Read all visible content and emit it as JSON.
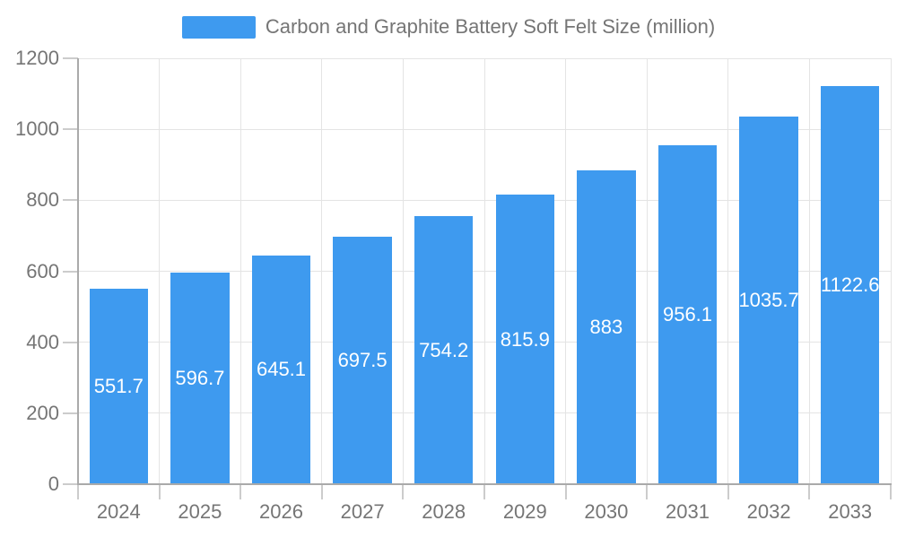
{
  "legend": {
    "label": "Carbon and Graphite Battery Soft Felt Size (million)"
  },
  "colors": {
    "bar": "#3E9AEF",
    "grid_line": "#E4E4E4",
    "axis_line": "#AAAAAA",
    "tick_mark": "#CCCCCC",
    "tick_label": "#757575",
    "value_label": "#FFFFFF"
  },
  "chart_data": {
    "type": "bar",
    "title": "Carbon and Graphite Battery Soft Felt Size (million)",
    "categories": [
      "2024",
      "2025",
      "2026",
      "2027",
      "2028",
      "2029",
      "2030",
      "2031",
      "2032",
      "2033"
    ],
    "series": [
      {
        "name": "Carbon and Graphite Battery Soft Felt Size (million)",
        "values": [
          551.7,
          596.7,
          645.1,
          697.5,
          754.2,
          815.9,
          883,
          956.1,
          1035.7,
          1122.6
        ]
      }
    ],
    "xlabel": "",
    "ylabel": "",
    "ylim": [
      0,
      1200
    ],
    "yticks": [
      0,
      200,
      400,
      600,
      800,
      1000,
      1200
    ],
    "grid": true,
    "legend_position": "top",
    "value_labels_position": "inside-middle",
    "bar_width_fraction": 0.72
  }
}
